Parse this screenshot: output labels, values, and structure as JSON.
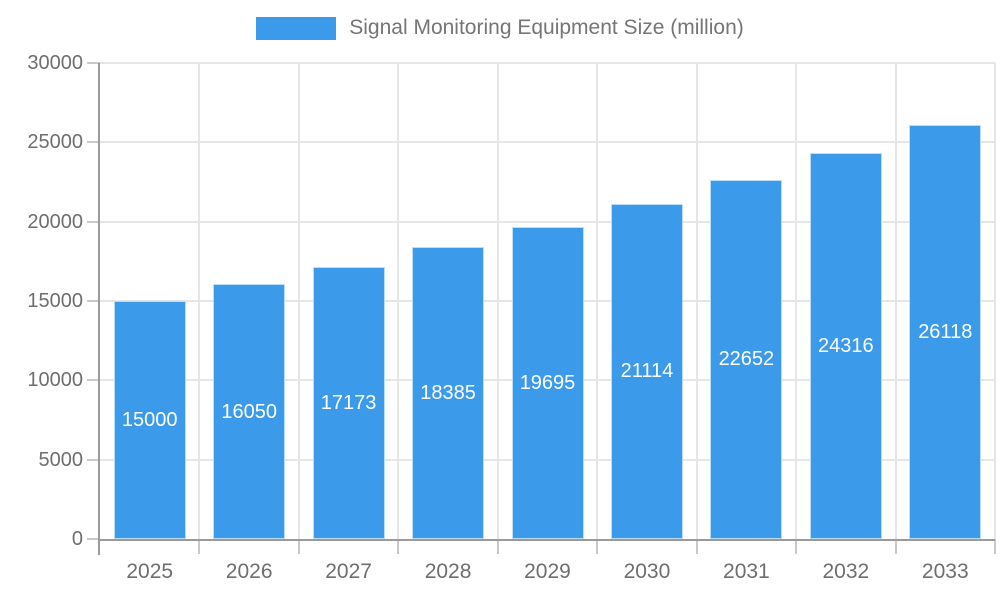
{
  "legend": {
    "label": "Signal Monitoring Equipment Size (million)"
  },
  "chart_data": {
    "type": "bar",
    "title": "Signal Monitoring Equipment Size (million)",
    "categories": [
      "2025",
      "2026",
      "2027",
      "2028",
      "2029",
      "2030",
      "2031",
      "2032",
      "2033"
    ],
    "series": [
      {
        "name": "Signal Monitoring Equipment Size (million)",
        "values": [
          15000,
          16050,
          17173,
          18385,
          19695,
          21114,
          22652,
          24316,
          26118
        ],
        "color": "#3C9AEB"
      }
    ],
    "value_labels": [
      15000,
      16050,
      17173,
      18385,
      19695,
      21114,
      22652,
      24316,
      26118
    ],
    "value_label_color": "#ffffff",
    "xlabel": "",
    "ylabel": "",
    "ylim": [
      0,
      30000
    ],
    "yticks": [
      0,
      5000,
      10000,
      15000,
      20000,
      25000,
      30000
    ],
    "grid": true,
    "legend_position": "top",
    "colors": {
      "bar": "#3C9AEB",
      "grid_line": "#e6e6e6",
      "axis_line": "#9a9a9a",
      "tick_mark": "#c9c9c9",
      "axis_label": "#6e6e6e",
      "legend_text": "#757575",
      "background": "#ffffff"
    }
  }
}
